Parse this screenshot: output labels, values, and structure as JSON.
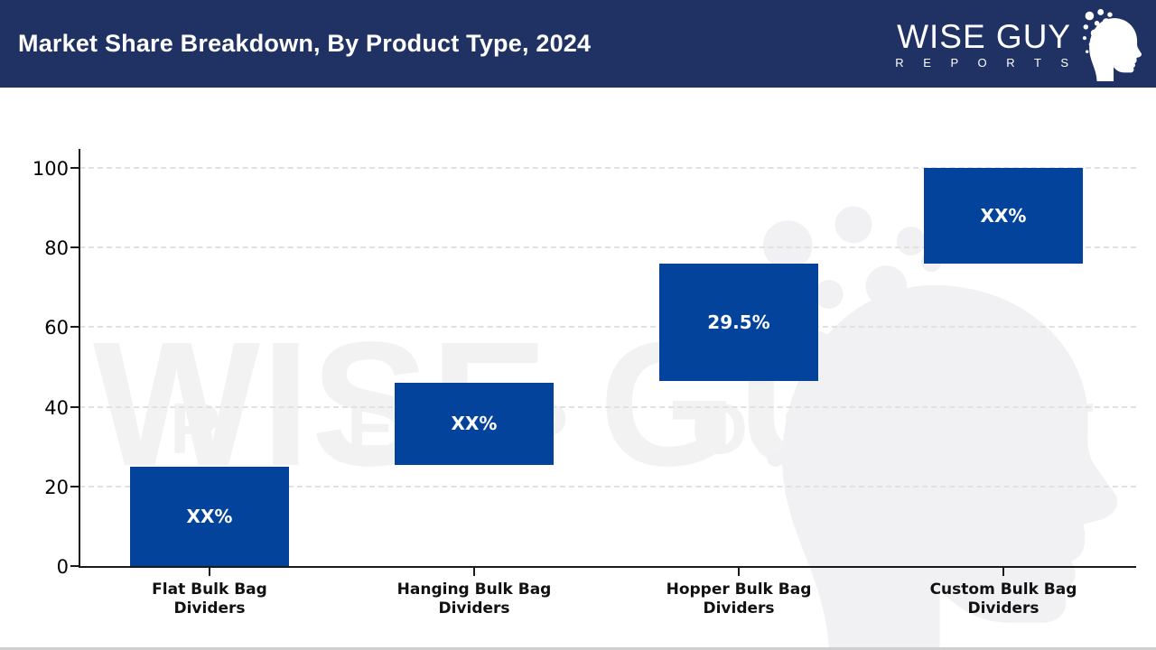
{
  "header": {
    "title": "Market Share Breakdown, By Product Type, 2024",
    "bg_color": "#203264",
    "logo": {
      "line1": "WISE GUY",
      "line2": "R E P O R T S"
    }
  },
  "watermark": {
    "line1": "WISE GUY",
    "line2": "R E P O R T S"
  },
  "chart_data": {
    "type": "bar",
    "variant": "floating-waterfall",
    "title": "Market Share Breakdown, By Product Type, 2024",
    "categories": [
      "Flat Bulk Bag Dividers",
      "Hanging Bulk Bag Dividers",
      "Hopper Bulk Bag Dividers",
      "Custom Bulk Bag Dividers"
    ],
    "bars": [
      {
        "category": "Flat Bulk Bag Dividers",
        "start": 0,
        "end": 25,
        "label": "XX%"
      },
      {
        "category": "Hanging Bulk Bag Dividers",
        "start": 25.5,
        "end": 46,
        "label": "XX%"
      },
      {
        "category": "Hopper Bulk Bag Dividers",
        "start": 46.5,
        "end": 76,
        "label": "29.5%"
      },
      {
        "category": "Custom Bulk Bag Dividers",
        "start": 76,
        "end": 100,
        "label": "XX%"
      }
    ],
    "xlabel": "",
    "ylabel": "",
    "ylim": [
      0,
      105
    ],
    "yticks": [
      0,
      20,
      40,
      60,
      80,
      100
    ],
    "grid": {
      "horizontal": true,
      "style": "dashed"
    },
    "legend": null,
    "colors": {
      "bar": "#04439c",
      "value_label": "#ffffff",
      "axis": "#1a1a1a",
      "grid": "#e1e1e1",
      "tick_label": "#000000",
      "category_label": "#111111",
      "header_bg": "#203264",
      "watermark": "#f2f2f3"
    }
  }
}
